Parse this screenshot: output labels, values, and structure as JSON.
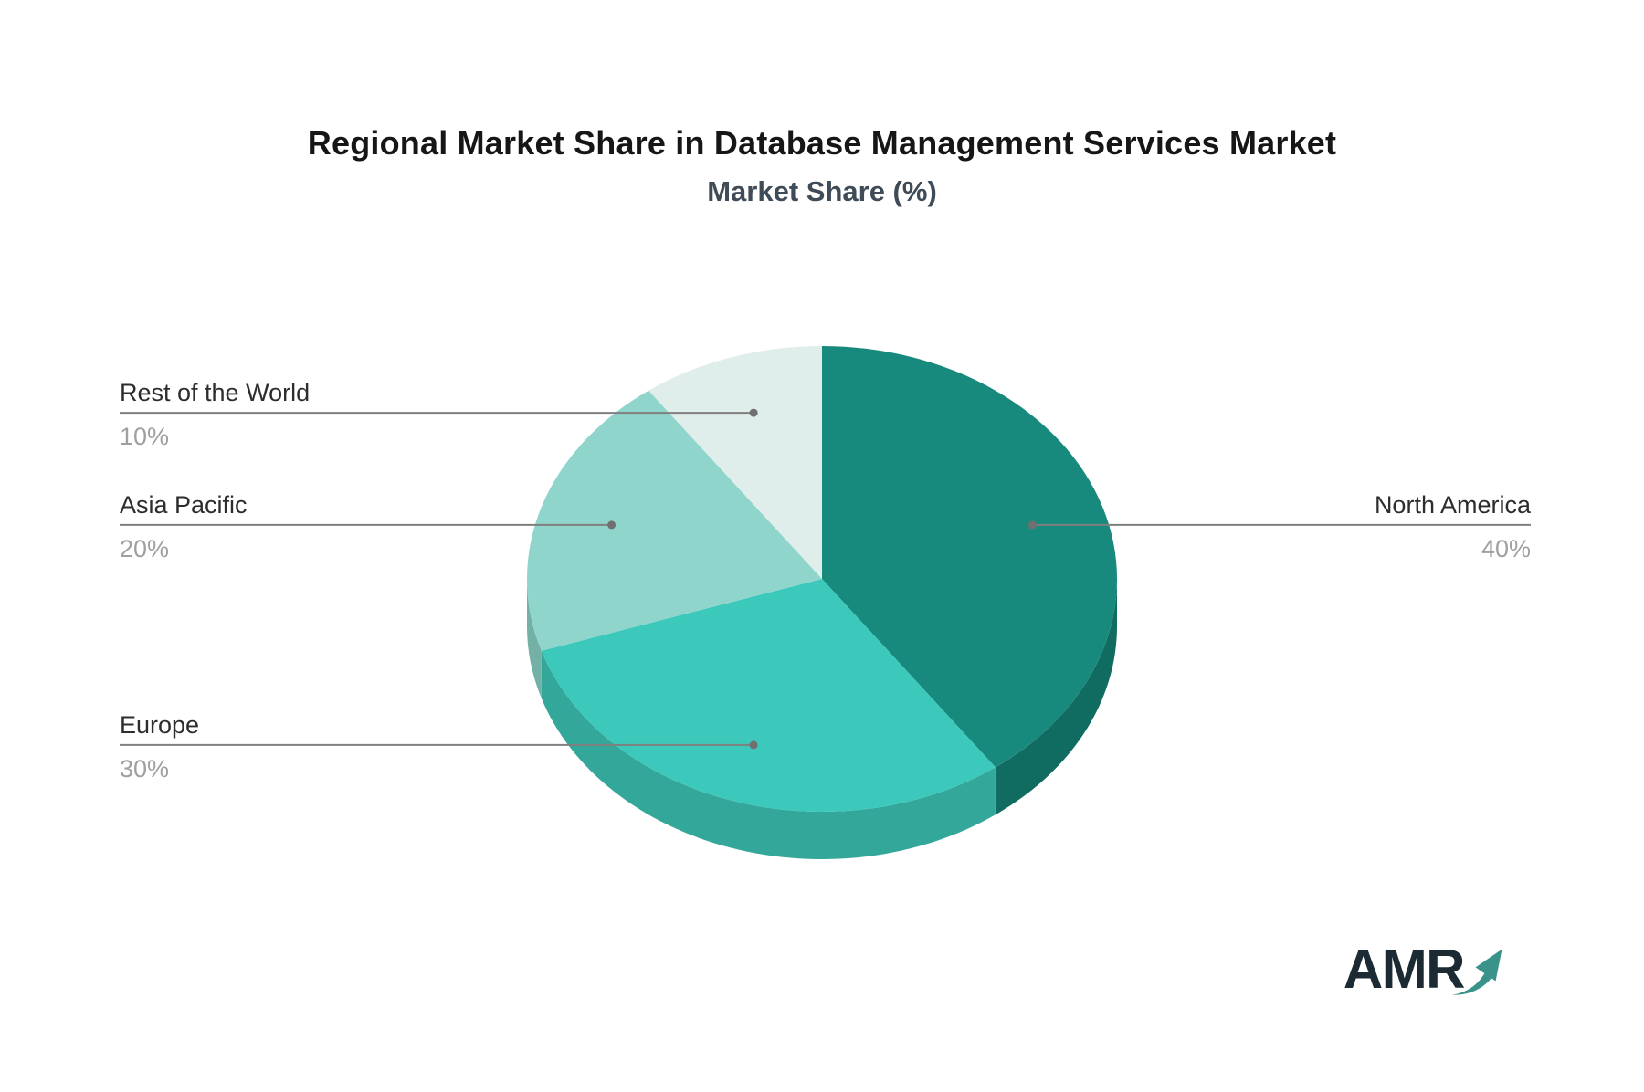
{
  "chart_data": {
    "type": "pie",
    "title": "Regional Market Share in Database Management Services Market",
    "subtitle": "Market Share (%)",
    "unit": "%",
    "effect": "3d",
    "direction": "clockwise",
    "start_angle_deg": 0,
    "legend_position": "none",
    "slices": [
      {
        "label": "North America",
        "value": 40,
        "pct_label": "40%",
        "color": "#18897d",
        "side_color": "#106c60",
        "label_side": "right"
      },
      {
        "label": "Europe",
        "value": 30,
        "pct_label": "30%",
        "color": "#3cc9bc",
        "side_color": "#33a89a",
        "label_side": "left"
      },
      {
        "label": "Asia Pacific",
        "value": 20,
        "pct_label": "20%",
        "color": "#8fd5cc",
        "side_color": "#73b0a6",
        "label_side": "left"
      },
      {
        "label": "Rest of the World",
        "value": 10,
        "pct_label": "10%",
        "color": "#dfeeea",
        "side_color": "#c6ded9",
        "label_side": "left"
      }
    ],
    "leader": {
      "line_color": "#7f7f7f",
      "dot_color": "#707070",
      "label_color": "#2d2d2d",
      "pct_color": "#a0a0a0"
    }
  },
  "logo": {
    "text": "AMR",
    "text_color": "#1c2b33",
    "arrow_color": "#3a938a"
  }
}
